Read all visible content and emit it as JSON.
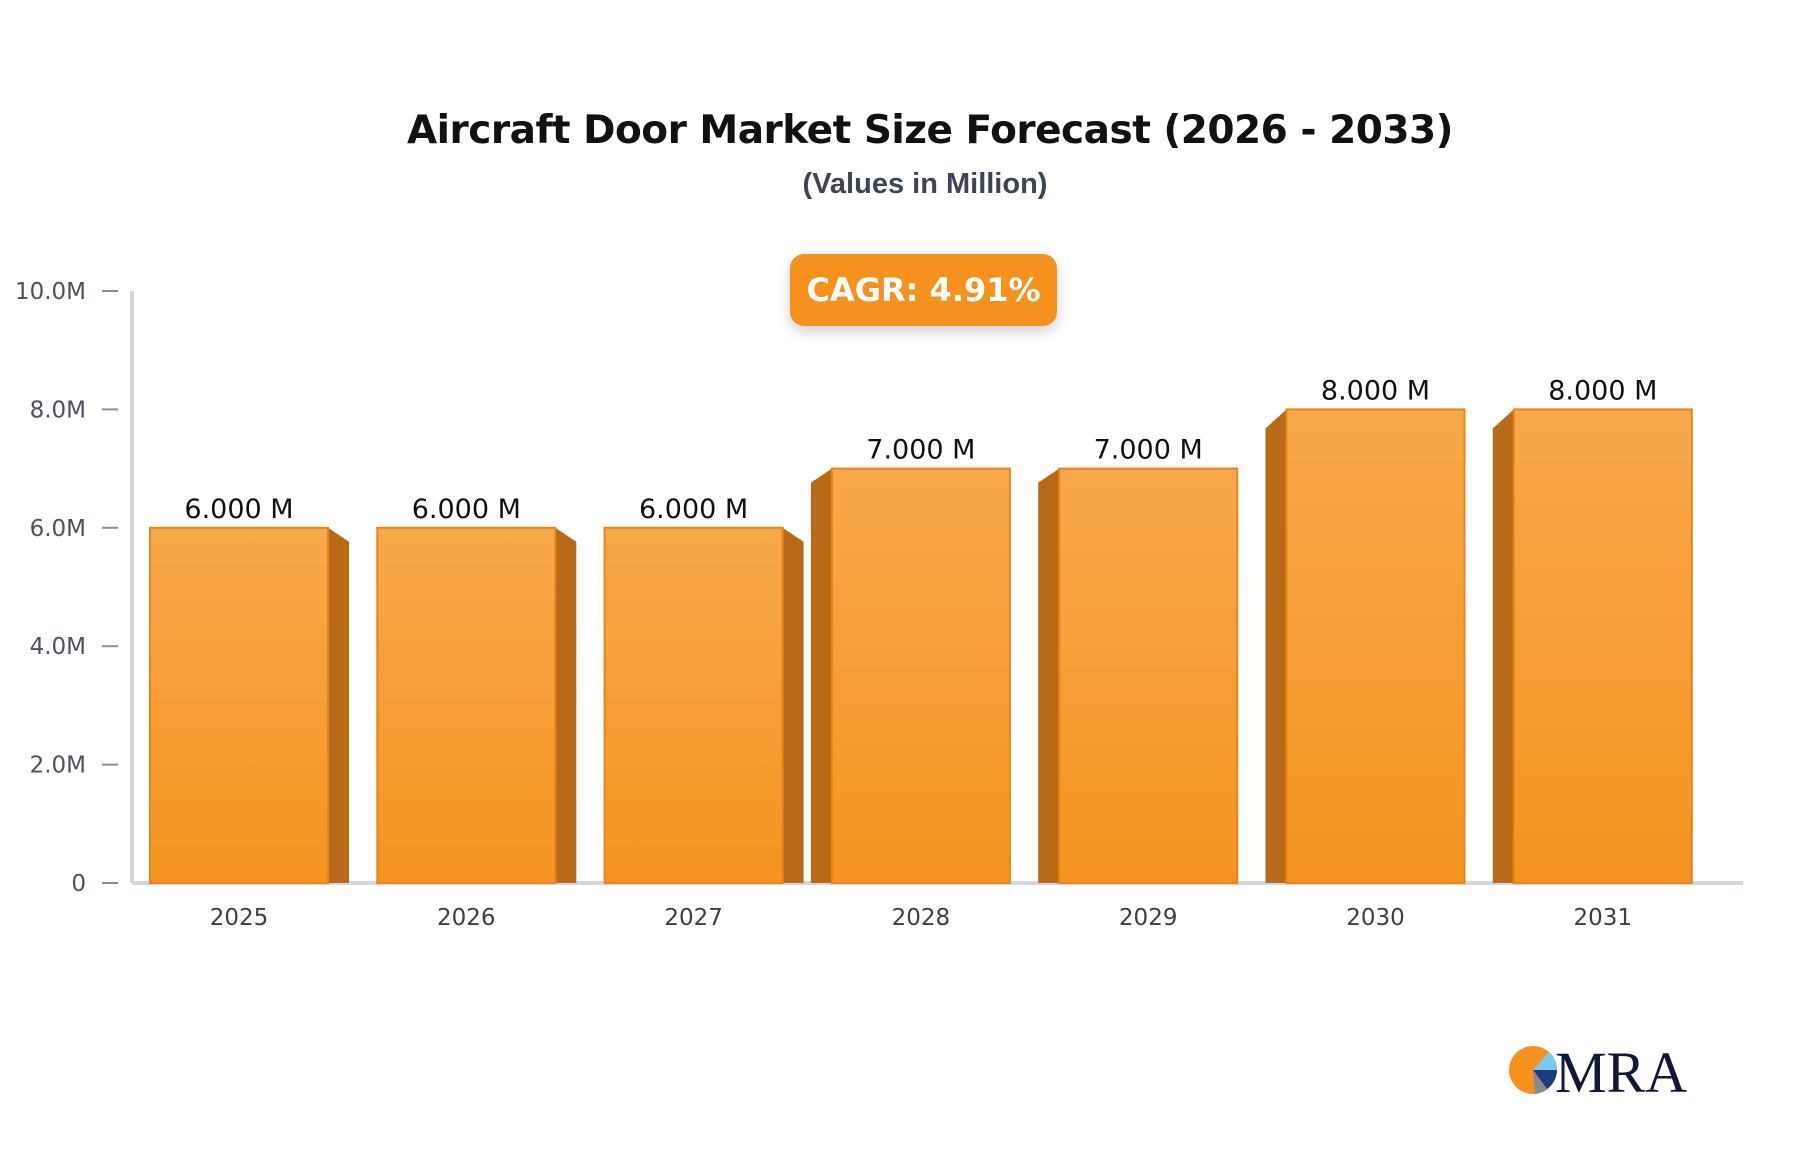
{
  "chart_data": {
    "type": "bar",
    "title": "Aircraft Door Market Size Forecast (2026 - 2033)",
    "subtitle": "(Values in Million)",
    "categories": [
      "2025",
      "2026",
      "2027",
      "2028",
      "2029",
      "2030",
      "2031"
    ],
    "values": [
      6,
      6,
      6,
      7,
      7,
      8,
      8
    ],
    "data_labels": [
      "6.000 M",
      "6.000 M",
      "6.000 M",
      "7.000 M",
      "7.000 M",
      "8.000 M",
      "8.000 M"
    ],
    "yticks": [
      0,
      2,
      4,
      6,
      8,
      10
    ],
    "ytick_labels": [
      "0",
      "2.0M",
      "4.0M",
      "6.0M",
      "8.0M",
      "10.0M"
    ],
    "ylim": [
      0,
      10
    ],
    "grid": false,
    "bar_color": "#f7a043",
    "bar_side_color": "#b96a18",
    "annotation": "CAGR: 4.91%"
  },
  "logo": {
    "text": "MRA"
  }
}
